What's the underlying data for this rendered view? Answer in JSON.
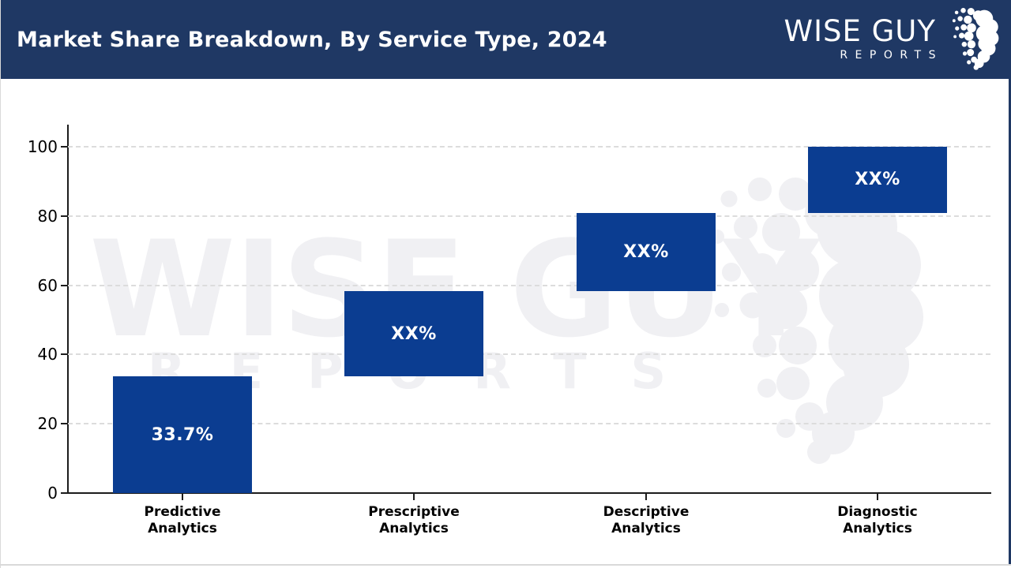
{
  "header": {
    "title": "Market Share Breakdown, By Service Type, 2024"
  },
  "logo": {
    "line1": "WISE GUY",
    "line2": "REPORTS"
  },
  "watermark": {
    "line1": "WISE GUY",
    "line2": "REPORTS"
  },
  "colors": {
    "header_bg": "#1f3864",
    "bar": "#0b3d91",
    "bar_label": "#ffffff",
    "grid": "#dcdcdc",
    "axis": "#1c1c1c",
    "watermark": "#f0f0f3"
  },
  "chart_data": {
    "type": "bar",
    "subtype": "waterfall",
    "title": "Market Share Breakdown, By Service Type, 2024",
    "categories": [
      "Predictive Analytics",
      "Prescriptive Analytics",
      "Descriptive Analytics",
      "Diagnostic Analytics"
    ],
    "segments": [
      {
        "category": "Predictive Analytics",
        "start": 0,
        "end": 33.7,
        "label": "33.7%"
      },
      {
        "category": "Prescriptive Analytics",
        "start": 33.7,
        "end": 58.3,
        "label": "XX%"
      },
      {
        "category": "Descriptive Analytics",
        "start": 58.3,
        "end": 80.9,
        "label": "XX%"
      },
      {
        "category": "Diagnostic Analytics",
        "start": 80.9,
        "end": 100,
        "label": "XX%"
      }
    ],
    "ylim": [
      0,
      100
    ],
    "yticks": [
      0,
      20,
      40,
      60,
      80,
      100
    ],
    "xlabel": "",
    "ylabel": "",
    "grid": "horizontal-dashed",
    "legend": "none"
  }
}
